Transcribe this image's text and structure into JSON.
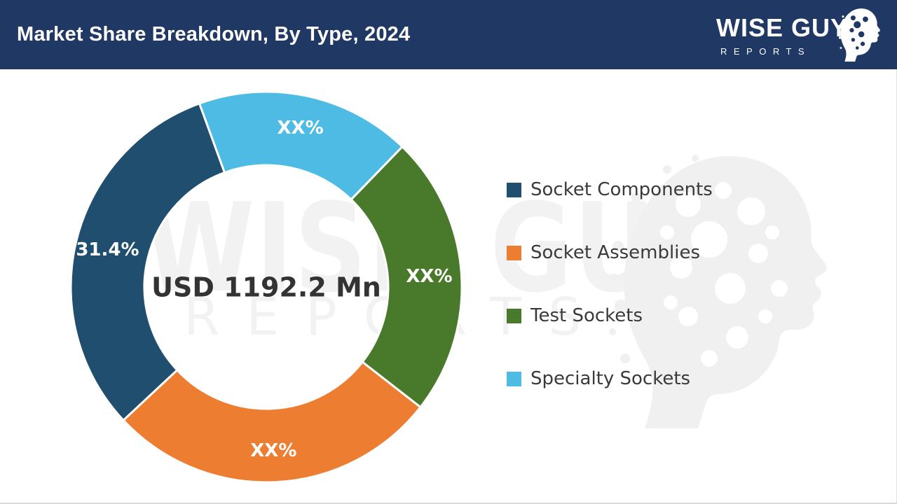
{
  "header": {
    "title": "Market Share Breakdown, By Type, 2024",
    "bg_color": "#203864",
    "logo": {
      "line1": "WISE GUY",
      "line2": "REPORTS"
    }
  },
  "watermark": {
    "line1": "WISE GUY",
    "line2": "REPORTS"
  },
  "chart_data": {
    "type": "pie",
    "subtype": "donut",
    "title": "Market Share Breakdown, By Type, 2024",
    "center_label": "USD 1192.2 Mn",
    "legend_position": "right",
    "start_angle_deg": 110,
    "direction": "counterclockwise",
    "segments": [
      {
        "label": "Socket Components",
        "value_pct": 31.4,
        "display_label": "31.4%",
        "color": "#1f4e6e"
      },
      {
        "label": "Socket Assemblies",
        "value_pct": 27.5,
        "display_label": "XX%",
        "color": "#ed7d31"
      },
      {
        "label": "Test Sockets",
        "value_pct": 23.3,
        "display_label": "XX%",
        "color": "#497a2b"
      },
      {
        "label": "Specialty Sockets",
        "value_pct": 17.8,
        "display_label": "XX%",
        "color": "#4dbbe4"
      }
    ]
  }
}
